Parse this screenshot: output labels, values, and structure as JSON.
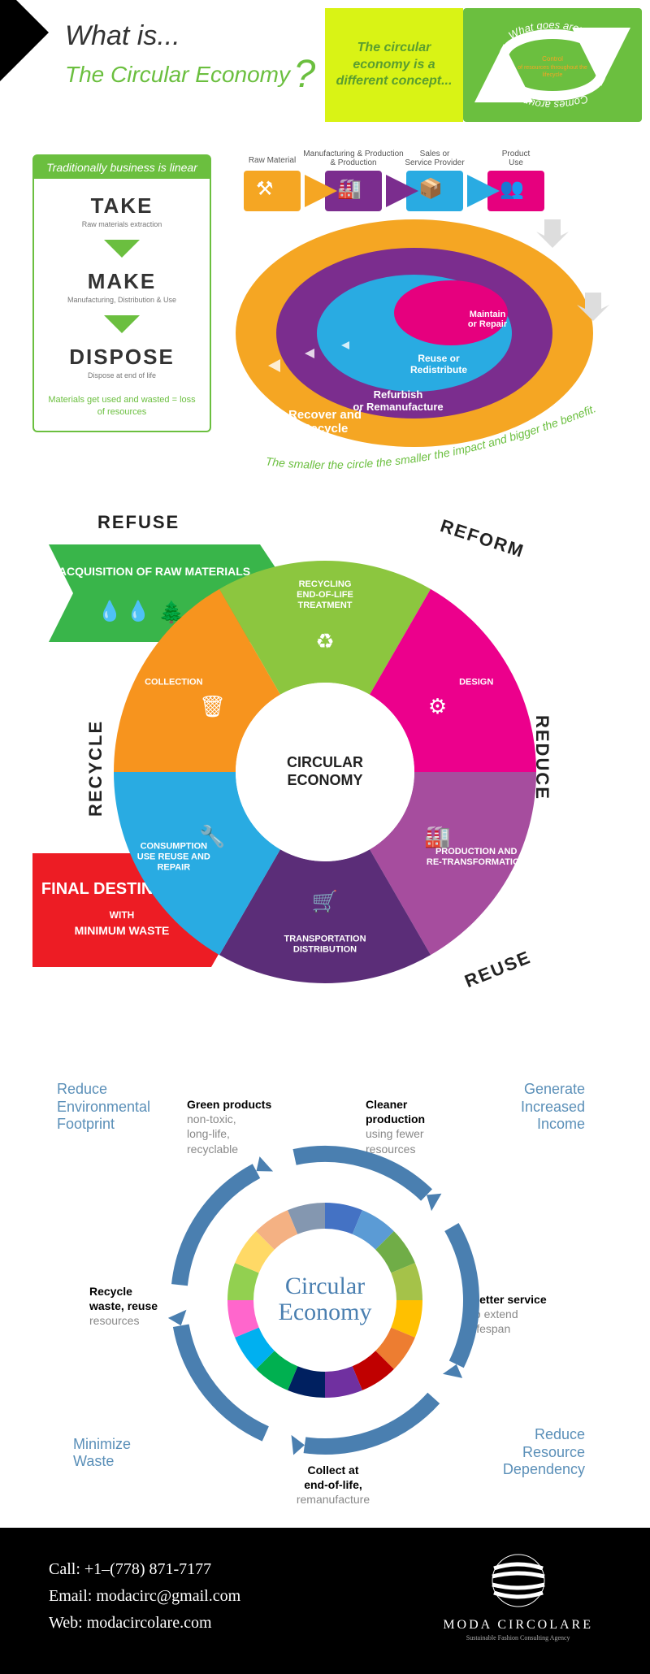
{
  "header": {
    "title_line1": "What is...",
    "title_line2": "The Circular Economy",
    "question_mark": "?",
    "lime_box": "The circular economy is a different concept...",
    "green_box": {
      "top": "What goes around",
      "center": "Control of resources throughout the lifecycle",
      "bottom": "Comes around"
    }
  },
  "linear": {
    "head": "Traditionally business is linear",
    "steps": [
      {
        "title": "TAKE",
        "sub": "Raw materials extraction"
      },
      {
        "title": "MAKE",
        "sub": "Manufacturing, Distribution & Use"
      },
      {
        "title": "DISPOSE",
        "sub": "Dispose at end of life"
      }
    ],
    "footer": "Materials get used and wasted = loss of resources"
  },
  "spiral": {
    "top_labels": [
      "Raw Material",
      "Manufacturing & Production",
      "Sales or Service Provider",
      "Product Use"
    ],
    "rings": [
      {
        "label": "Recover and Recycle",
        "color": "#f5a623"
      },
      {
        "label": "Refurbish or Remanufacture",
        "color": "#7b2d8e"
      },
      {
        "label": "Reuse or Redistribute",
        "color": "#29abe2"
      },
      {
        "label": "Maintain or Repair",
        "color": "#e6007e"
      }
    ],
    "caption": "The smaller the circle the smaller the impact and bigger the benefit.",
    "top_colors": [
      "#f5a623",
      "#7b2d8e",
      "#29abe2",
      "#e6007e"
    ]
  },
  "wheel": {
    "center": "CIRCULAR ECONOMY",
    "outer_labels": [
      "REFUSE",
      "REFORM",
      "REDUCE",
      "REUSE",
      "RECYCLE"
    ],
    "segments": [
      {
        "label": "RECYCLING END-OF-LIFE TREATMENT",
        "color": "#8cc63f",
        "icon": "♻"
      },
      {
        "label": "DESIGN",
        "color": "#ec008c",
        "icon": "⚙"
      },
      {
        "label": "PRODUCTION AND RE-TRANSFORMATION",
        "color": "#a64d9e",
        "icon": "🏭"
      },
      {
        "label": "TRANSPORTATION DISTRIBUTION",
        "color": "#5b2d78",
        "icon": "🛒"
      },
      {
        "label": "CONSUMPTION USE REUSE AND REPAIR",
        "color": "#29abe2",
        "icon": "🔧"
      },
      {
        "label": "COLLECTION",
        "color": "#f7941e",
        "icon": "🗑"
      }
    ],
    "refuse_banner": "ACQUISITION OF RAW MATERIALS",
    "refuse_color": "#39b54a",
    "final_banner": {
      "title": "FINAL DESTINATION",
      "sub1": "WITH",
      "sub2": "MINIMUM WASTE",
      "color": "#ed1c24"
    }
  },
  "ring": {
    "center": "Circular Economy",
    "seg_colors": [
      "#4472c4",
      "#5b9bd5",
      "#70ad47",
      "#a5c249",
      "#ffc000",
      "#ed7d31",
      "#c00000",
      "#7030a0",
      "#002060",
      "#00b050",
      "#00b0f0",
      "#ff66cc",
      "#92d050",
      "#ffd966",
      "#f4b183",
      "#8497b0"
    ],
    "items": [
      {
        "title": "Green products",
        "sub": "non-toxic, long-life, recyclable"
      },
      {
        "title": "Cleaner production",
        "sub": "using fewer resources"
      },
      {
        "title": "Better service",
        "sub": "to extend lifespan"
      },
      {
        "title": "Collect at end-of-life,",
        "sub": "remanufacture"
      },
      {
        "title": "Recycle waste, reuse",
        "sub": "resources"
      }
    ],
    "corners": [
      "Reduce Environmental Footprint",
      "Generate Increased Income",
      "Reduce Resource Dependency",
      "Minimize Waste"
    ],
    "arrow_color": "#4a7fb0"
  },
  "footer": {
    "call": "Call: +1–(778) 871-7177",
    "email": "Email: modacirc@gmail.com",
    "web": "Web: modacircolare.com",
    "brand": "MODA CIRCOLARE",
    "tagline": "Sustainable Fashion Consulting Agency"
  }
}
